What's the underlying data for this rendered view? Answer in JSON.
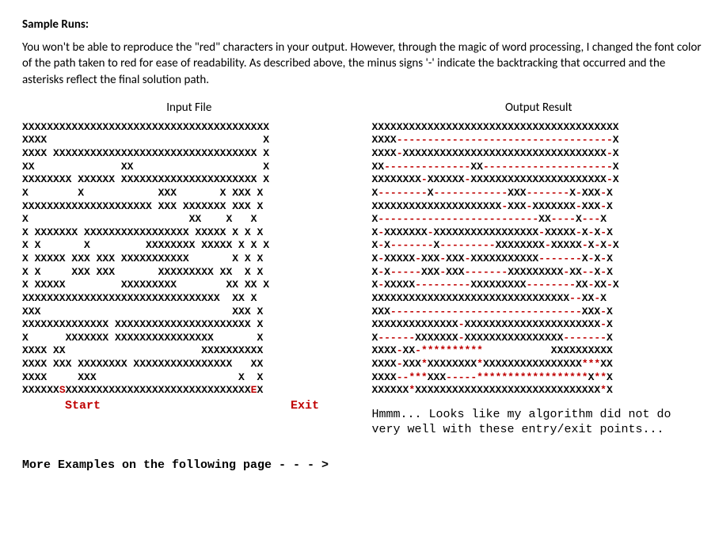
{
  "heading": "Sample Runs:",
  "paragraph": "You won't be able to reproduce the \"red\" characters in your output.  However, through the magic of word processing, I changed the font color of the path taken to red for ease of readability.  As described above, the minus signs '-' indicate the backtracking that occurred and the asterisks reflect the final solution path.",
  "columns": {
    "input_title": "Input File",
    "output_title": "Output Result"
  },
  "input_maze": {
    "lines": [
      "XXXXXXXXXXXXXXXXXXXXXXXXXXXXXXXXXXXXXXXX",
      "XXXX                                   X",
      "XXXX XXXXXXXXXXXXXXXXXXXXXXXXXXXXXXXXX X",
      "XX              XX                     X",
      "XXXXXXXX XXXXXX XXXXXXXXXXXXXXXXXXXXXX X",
      "X        X            XXX       X XXX X",
      "XXXXXXXXXXXXXXXXXXXXX XXX XXXXXXX XXX X",
      "X                          XX    X   X",
      "X XXXXXXX XXXXXXXXXXXXXXXXX XXXXX X X X",
      "X X       X         XXXXXXXX XXXXX X X X",
      "X XXXXX XXX XXX XXXXXXXXXXX       X X X",
      "X X     XXX XXX       XXXXXXXXX XX  X X",
      "X XXXXX         XXXXXXXXX        XX XX X",
      "XXXXXXXXXXXXXXXXXXXXXXXXXXXXXXXX  XX X",
      "XXX                               XXX X",
      "XXXXXXXXXXXXXX XXXXXXXXXXXXXXXXXXXXXX X",
      "X      XXXXXXX XXXXXXXXXXXXXXXX       X",
      "XXXX XX                      XXXXXXXXXX",
      "XXXX XXX XXXXXXXX XXXXXXXXXXXXXXXX   XX",
      "XXXX     XXX                       X  X",
      "XXXXXXSXXXXXXXXXXXXXXXXXXXXXXXXXXXXXXEX"
    ],
    "highlight_chars": [
      "S",
      "E"
    ]
  },
  "output_maze": {
    "lines": [
      "XXXXXXXXXXXXXXXXXXXXXXXXXXXXXXXXXXXXXXXX",
      "XXXX-----------------------------------X",
      "XXXX-XXXXXXXXXXXXXXXXXXXXXXXXXXXXXXXXX-X",
      "XX--------------XX---------------------X",
      "XXXXXXXX-XXXXXX-XXXXXXXXXXXXXXXXXXXXXX-X",
      "X--------X------------XXX-------X-XXX-X",
      "XXXXXXXXXXXXXXXXXXXXX-XXX-XXXXXXX-XXX-X",
      "X--------------------------XX----X---X",
      "X-XXXXXXX-XXXXXXXXXXXXXXXXX-XXXXX-X-X-X",
      "X-X-------X---------XXXXXXXX-XXXXX-X-X-X",
      "X-XXXXX-XXX-XXX-XXXXXXXXXXX-------X-X-X",
      "X-X-----XXX-XXX-------XXXXXXXXX-XX--X-X",
      "X-XXXXX---------XXXXXXXXX--------XX-XX-X",
      "XXXXXXXXXXXXXXXXXXXXXXXXXXXXXXXX--XX-X",
      "XXX-------------------------------XXX-X",
      "XXXXXXXXXXXXXX-XXXXXXXXXXXXXXXXXXXXXX-X",
      "X------XXXXXXX-XXXXXXXXXXXXXXXX-------X",
      "XXXX-XX-**********           XXXXXXXXXX",
      "XXXX-XXX*XXXXXXXX*XXXXXXXXXXXXXXXX***XX",
      "XXXX--***XXX-----******************X**X",
      "XXXXXX*XXXXXXXXXXXXXXXXXXXXXXXXXXXXXX*X"
    ],
    "highlight_chars": [
      "-",
      "*"
    ]
  },
  "legend": {
    "start": "Start",
    "exit": "Exit"
  },
  "note_lines": [
    "Hmmm... Looks like my algorithm did not do",
    "very well with these entry/exit points..."
  ],
  "more": "More Examples on the following page - - - >",
  "path_color": "#c00000"
}
